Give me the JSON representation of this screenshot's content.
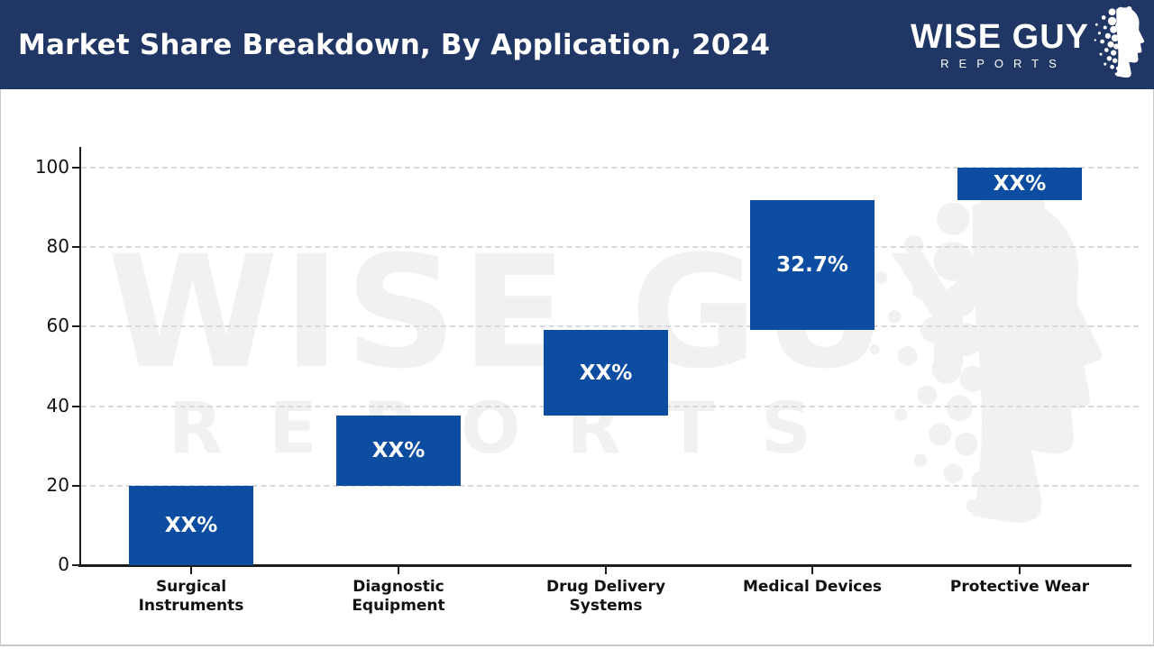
{
  "header": {
    "title": "Market Share Breakdown, By Application, 2024",
    "logo": {
      "line1": "WISE GUY",
      "line2": "REPORTS"
    }
  },
  "watermark": {
    "line1": "WISE GUY",
    "line2": "R E P O R T S"
  },
  "colors": {
    "header_bg": "#203664",
    "bar": "#0d4da1",
    "title_text": "#ffffff",
    "axis": "#1c1c1c",
    "gridline": "#d9d9d9",
    "watermark": "#f1f1f4"
  },
  "chart_data": {
    "type": "bar",
    "subtype": "waterfall",
    "title": "Market Share Breakdown, By Application, 2024",
    "categories": [
      "Surgical\nInstruments",
      "Diagnostic\nEquipment",
      "Drug Delivery\nSystems",
      "Medical Devices",
      "Protective Wear"
    ],
    "segments": [
      {
        "category": "Surgical Instruments",
        "label": "XX%",
        "start": 0,
        "end": 20,
        "value": 20
      },
      {
        "category": "Diagnostic Equipment",
        "label": "XX%",
        "start": 20,
        "end": 37.7,
        "value": 17.7
      },
      {
        "category": "Drug Delivery Systems",
        "label": "XX%",
        "start": 37.7,
        "end": 59.1,
        "value": 21.4
      },
      {
        "category": "Medical Devices",
        "label": "32.7%",
        "start": 59.1,
        "end": 91.8,
        "value": 32.7
      },
      {
        "category": "Protective Wear",
        "label": "XX%",
        "start": 91.8,
        "end": 100,
        "value": 8.2
      }
    ],
    "xlabel": "",
    "ylabel": "",
    "yticks": [
      0,
      20,
      40,
      60,
      80,
      100
    ],
    "ylim": [
      0,
      105
    ],
    "grid": "horizontal-dashed",
    "legend": null,
    "bar_color": "#0d4da1"
  }
}
